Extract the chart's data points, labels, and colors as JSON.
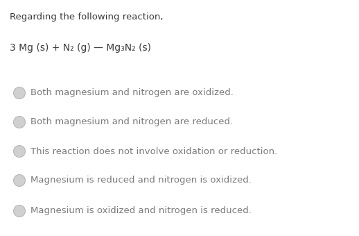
{
  "background_color": "#ffffff",
  "heading": "Regarding the following reaction,",
  "heading_color": "#3a3a3a",
  "heading_fontsize": 9.5,
  "equation_color": "#3a3a3a",
  "equation_fontsize": 10.0,
  "options": [
    "Both magnesium and nitrogen are oxidized.",
    "Both magnesium and nitrogen are reduced.",
    "This reaction does not involve oxidation or reduction.",
    "Magnesium is reduced and nitrogen is oxidized.",
    "Magnesium is oxidized and nitrogen is reduced."
  ],
  "options_fontsize": 9.5,
  "options_color": "#7a7a7a",
  "radio_face_color": "#d0d0d0",
  "radio_edge_color": "#b8b8b8",
  "radio_linewidth": 0.8,
  "fig_width": 5.18,
  "fig_height": 3.4,
  "dpi": 100
}
